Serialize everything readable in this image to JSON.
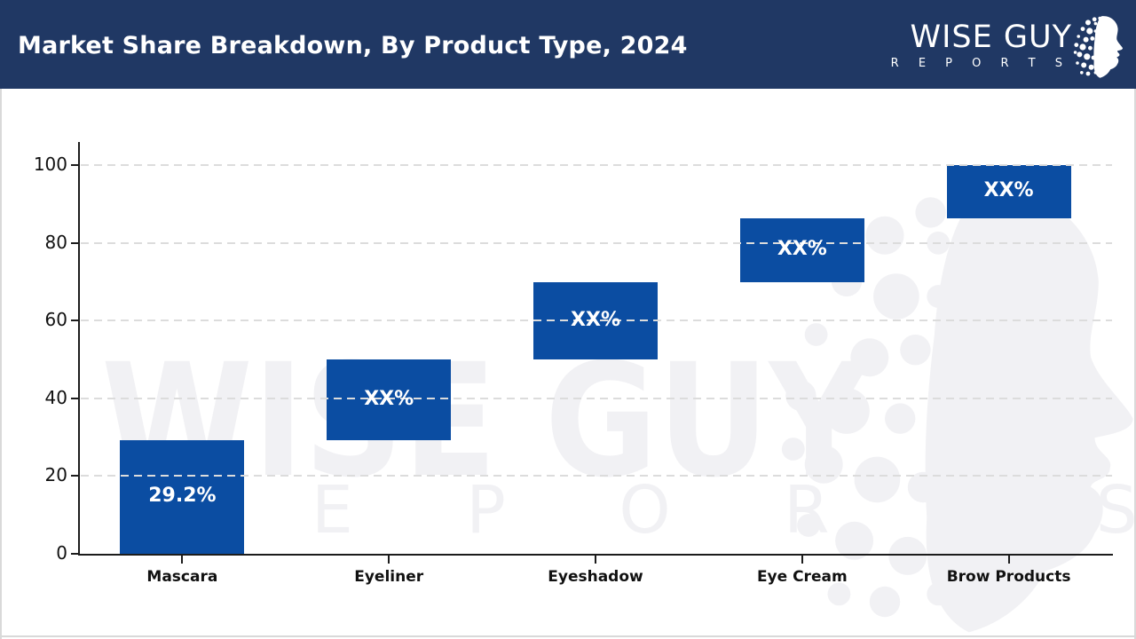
{
  "header": {
    "title": "Market Share Breakdown, By Product Type, 2024",
    "logo": {
      "line1": "WISE GUY",
      "line2": "R E P O R T S"
    }
  },
  "watermark": {
    "line1": "WISE GUY",
    "line2": "R E P O R T S"
  },
  "colors": {
    "header_bg": "#203864",
    "bar": "#0b4da2",
    "bar_label_text": "#ffffff",
    "grid": "#dcdcdc",
    "axis": "#1c1c1c",
    "watermark": "#f1f1f4",
    "border": "#d9d9d9"
  },
  "chart_data": {
    "type": "bar",
    "subtype": "waterfall",
    "title": "Market Share Breakdown, By Product Type, 2024",
    "categories": [
      "Mascara",
      "Eyeliner",
      "Eyeshadow",
      "Eye Cream",
      "Brow Products"
    ],
    "segments": [
      {
        "category": "Mascara",
        "start": 0,
        "end": 29.2,
        "value": 29.2,
        "label": "29.2%"
      },
      {
        "category": "Eyeliner",
        "start": 29.2,
        "end": 49.9,
        "value": 20.7,
        "label": "XX%"
      },
      {
        "category": "Eyeshadow",
        "start": 49.9,
        "end": 69.8,
        "value": 19.9,
        "label": "XX%"
      },
      {
        "category": "Eye Cream",
        "start": 69.8,
        "end": 86.3,
        "value": 16.5,
        "label": "XX%"
      },
      {
        "category": "Brow Products",
        "start": 86.3,
        "end": 100,
        "value": 13.7,
        "label": "XX%"
      }
    ],
    "yticks": [
      0,
      20,
      40,
      60,
      80,
      100
    ],
    "ylim": [
      0,
      106
    ],
    "xlabel": "",
    "ylabel": "",
    "grid": "dashed-horizontal",
    "legend": "none"
  }
}
